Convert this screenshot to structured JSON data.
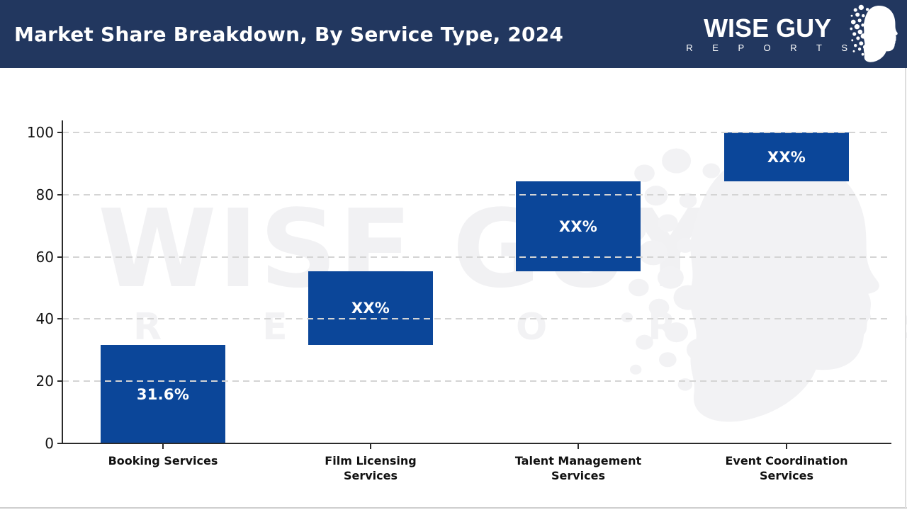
{
  "header": {
    "title": "Market Share Breakdown, By Service Type, 2024",
    "logo": {
      "name": "WISE GUY",
      "subtitle": "R E P O R T S"
    }
  },
  "watermark": {
    "line1": "WISE GUY",
    "line2": "R E P O R T S"
  },
  "chart_data": {
    "type": "waterfall",
    "title": "Market Share Breakdown, By Service Type, 2024",
    "categories": [
      "Booking Services",
      "Film Licensing Services",
      "Talent Management Services",
      "Event Coordination Services"
    ],
    "category_lines": [
      [
        "Booking Services"
      ],
      [
        "Film Licensing",
        "Services"
      ],
      [
        "Talent Management",
        "Services"
      ],
      [
        "Event Coordination",
        "Services"
      ]
    ],
    "series": [
      {
        "name": "Booking Services",
        "start": 0,
        "end": 31.6,
        "label": "31.6%"
      },
      {
        "name": "Film Licensing Services",
        "start": 31.6,
        "end": 55.3,
        "label": "XX%"
      },
      {
        "name": "Talent Management Services",
        "start": 55.3,
        "end": 84.2,
        "label": "XX%"
      },
      {
        "name": "Event Coordination Services",
        "start": 84.2,
        "end": 100,
        "label": "XX%"
      }
    ],
    "yticks": [
      0,
      20,
      40,
      60,
      80,
      100
    ],
    "ylim": [
      0,
      104
    ],
    "xlabel": "",
    "ylabel": "",
    "grid": "horizontal-dashed-drawn-over-bars",
    "legend": "none",
    "bar_label_color": "#ffffff"
  },
  "colors": {
    "header_bg": "#22375f",
    "bar": "#0b4699",
    "grid": "#d4d4d4",
    "axis": "#2b2b2b",
    "text": "#111111",
    "watermark": "#f1f1f3"
  }
}
